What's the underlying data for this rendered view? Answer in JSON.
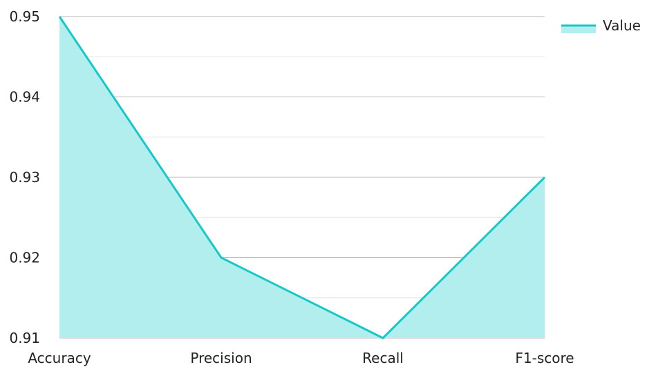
{
  "chart_data": {
    "type": "area",
    "categories": [
      "Accuracy",
      "Precision",
      "Recall",
      "F1-score"
    ],
    "series": [
      {
        "name": "Value",
        "values": [
          0.95,
          0.92,
          0.91,
          0.93
        ]
      }
    ],
    "title": "",
    "xlabel": "",
    "ylabel": "",
    "ylim": [
      0.91,
      0.95
    ],
    "yticks": [
      "0.95",
      "0.94",
      "0.93",
      "0.92",
      "0.91"
    ],
    "grid": true,
    "legend_position": "top-right",
    "colors": {
      "line": "#17c8c8",
      "fill": "#b2eeee",
      "grid_major": "#b8b8b8",
      "grid_minor": "#e4e4e4"
    }
  }
}
